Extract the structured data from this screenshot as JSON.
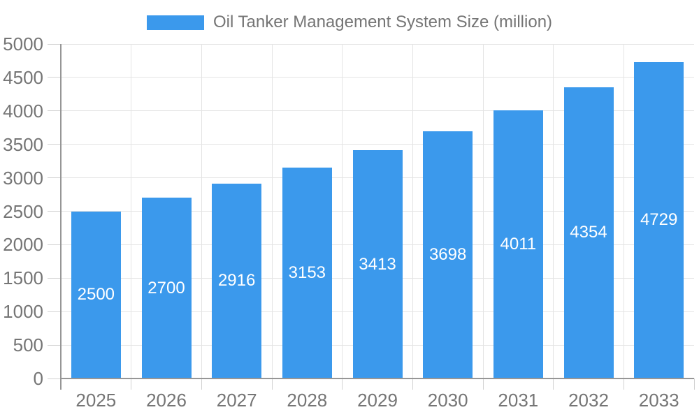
{
  "chart_data": {
    "type": "bar",
    "title": "Oil Tanker Management System Size (million)",
    "categories": [
      "2025",
      "2026",
      "2027",
      "2028",
      "2029",
      "2030",
      "2031",
      "2032",
      "2033"
    ],
    "values": [
      2500,
      2700,
      2916,
      3153,
      3413,
      3698,
      4011,
      4354,
      4729
    ],
    "xlabel": "",
    "ylabel": "",
    "ylim": [
      0,
      5000
    ],
    "yticks": [
      0,
      500,
      1000,
      1500,
      2000,
      2500,
      3000,
      3500,
      4000,
      4500,
      5000
    ],
    "grid": true,
    "legend_position": "top-center",
    "bar_labels_visible": true,
    "colors": {
      "bar": "#3b99ec",
      "bar_label": "#ffffff",
      "axis_text": "#757575",
      "axis_line": "#969696",
      "grid_line": "#e4e4e4",
      "tick_line": "#d2d2d2",
      "background": "#ffffff"
    }
  }
}
